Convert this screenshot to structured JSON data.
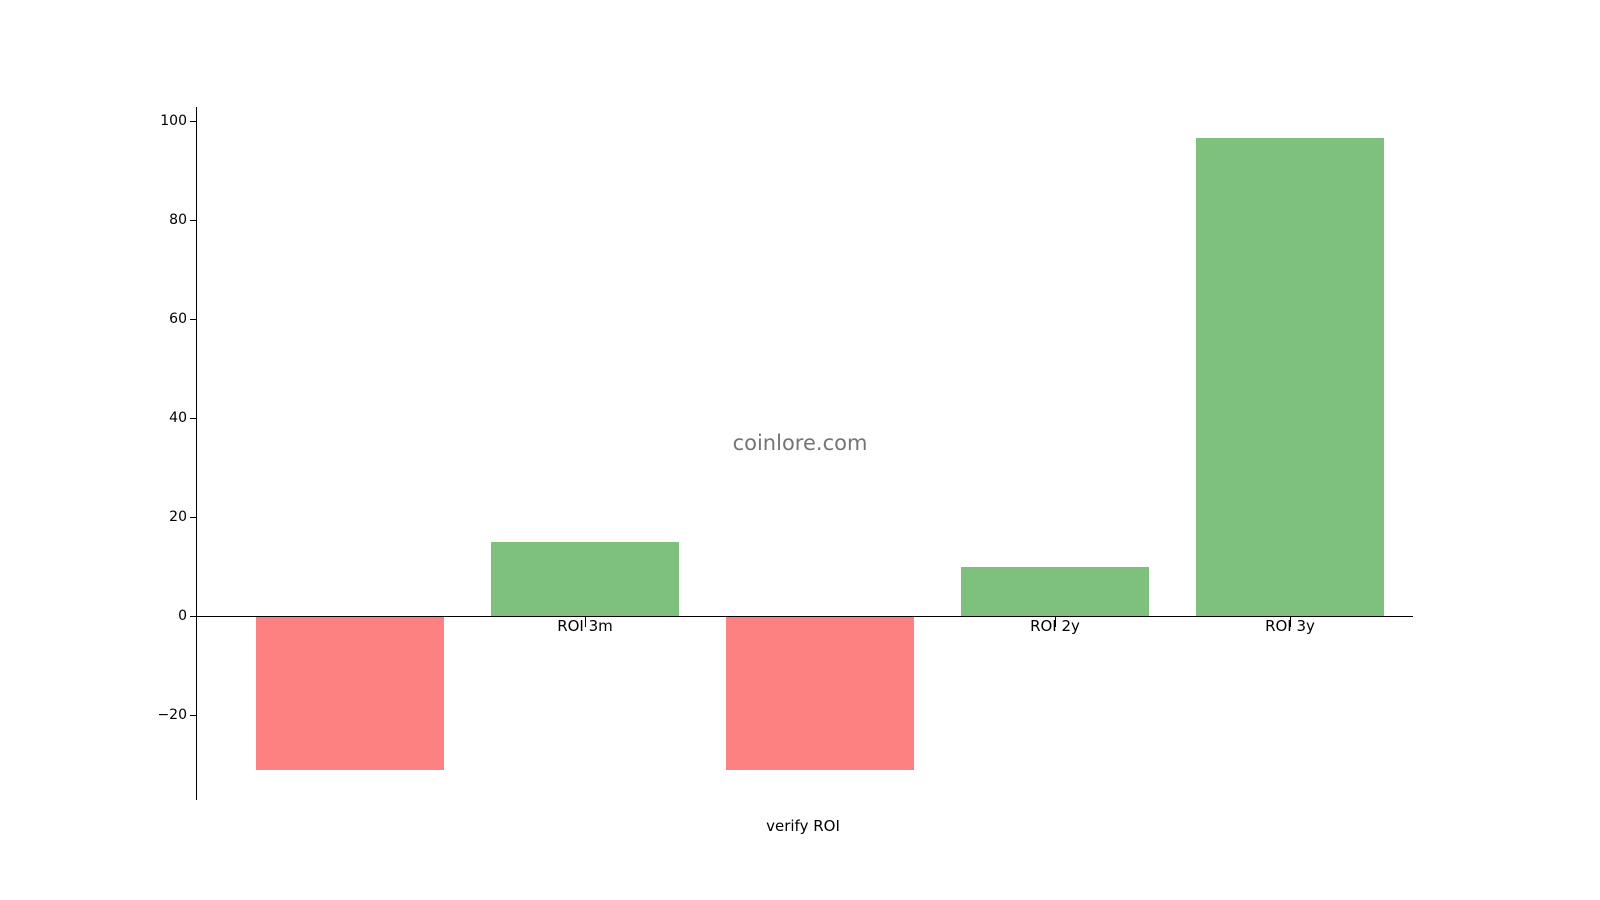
{
  "page": {
    "background": "#ffffff"
  },
  "watermark": {
    "text": "coinlore.com",
    "color": "#757575"
  },
  "chart_data": {
    "type": "bar",
    "categories": [
      "",
      "ROI 3m",
      "",
      "ROI 2y",
      "ROI 3y"
    ],
    "values": [
      -31,
      15,
      -31,
      10,
      96.5
    ],
    "bar_colors": [
      "#fd8181",
      "#7dc17d",
      "#fd8181",
      "#7dc17d",
      "#7dc17d"
    ],
    "title": "",
    "xlabel": "verify ROI",
    "ylabel": "",
    "ylim": [
      -37,
      103
    ],
    "yticks": [
      100,
      80,
      60,
      40,
      20,
      0,
      -20
    ],
    "ytick_labels": [
      "100",
      "80",
      "60",
      "40",
      "20",
      "0",
      "−20"
    ],
    "grid": false,
    "legend_position": "none",
    "positive_color": "#7dc17d",
    "negative_color": "#fd8181",
    "axis_color": "#000000"
  }
}
